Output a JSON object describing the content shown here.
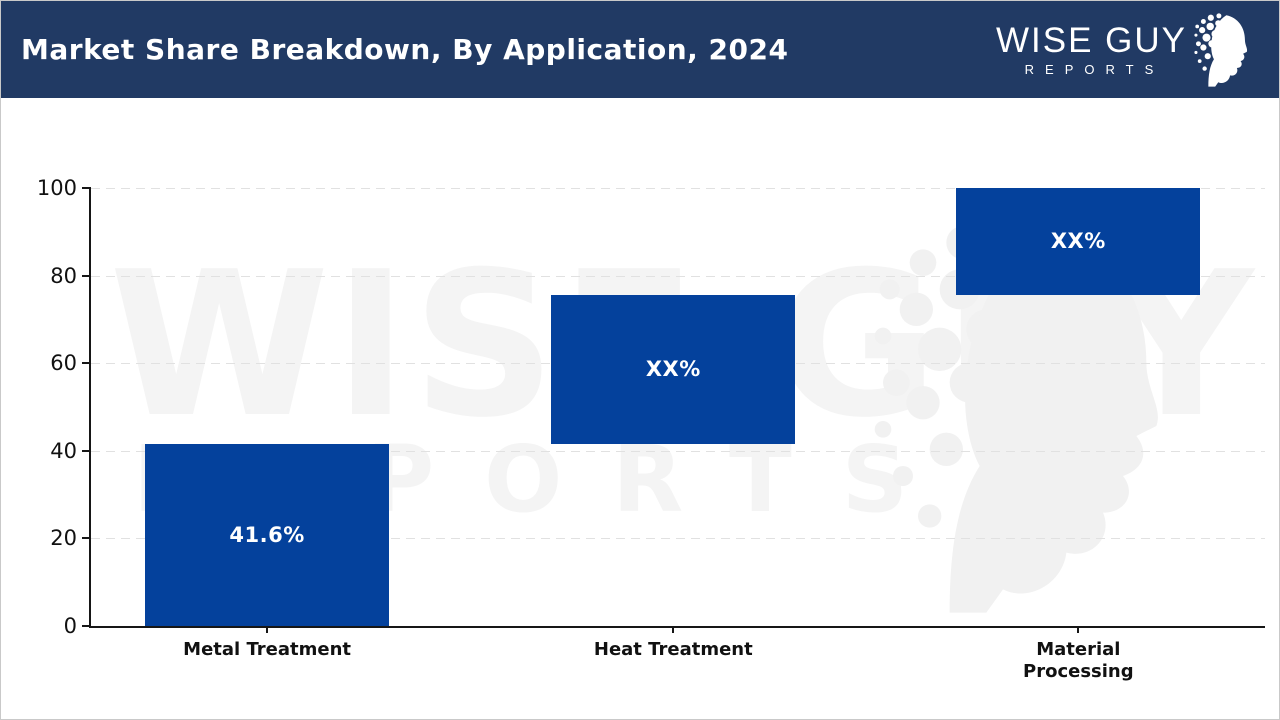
{
  "header": {
    "title": "Market Share Breakdown, By Application, 2024",
    "logo": {
      "main": "WISE GUY",
      "sub": "REPORTS"
    }
  },
  "watermark": {
    "wordmark": "WISE GUY",
    "subtext": "REPORTS"
  },
  "chart_data": {
    "type": "bar",
    "subtype": "floating-breakdown-bars",
    "title": "Market Share Breakdown, By Application, 2024",
    "categories": [
      "Metal Treatment",
      "Heat Treatment",
      "Material Processing"
    ],
    "segments": [
      {
        "category": "Metal Treatment",
        "start": 0,
        "end": 41.6,
        "value": 41.6,
        "label": "41.6%"
      },
      {
        "category": "Heat Treatment",
        "start": 41.6,
        "end": 75.6,
        "value": 34.0,
        "label": "XX%"
      },
      {
        "category": "Material Processing",
        "start": 75.6,
        "end": 100,
        "value": 24.4,
        "label": "XX%"
      }
    ],
    "displayed_values": [
      "41.6%",
      "XX%",
      "XX%"
    ],
    "xlabel": "",
    "ylabel": "",
    "ylim": [
      0,
      100
    ],
    "yticks": [
      0,
      20,
      40,
      60,
      80,
      100
    ],
    "grid": "horizontal-dashed",
    "legend": "none",
    "bar_color": "#04419c",
    "label_color": "#ffffff",
    "layout": {
      "bar_centers_pct": [
        15.0,
        49.6,
        84.1
      ],
      "bar_width_pct": 20.8
    }
  },
  "colors": {
    "header_bg": "#213a64",
    "bar": "#04419c",
    "grid": "#e1e1e1",
    "axis": "#161616",
    "watermark": "#f4f4f4",
    "page_border": "#c9c9c9"
  }
}
